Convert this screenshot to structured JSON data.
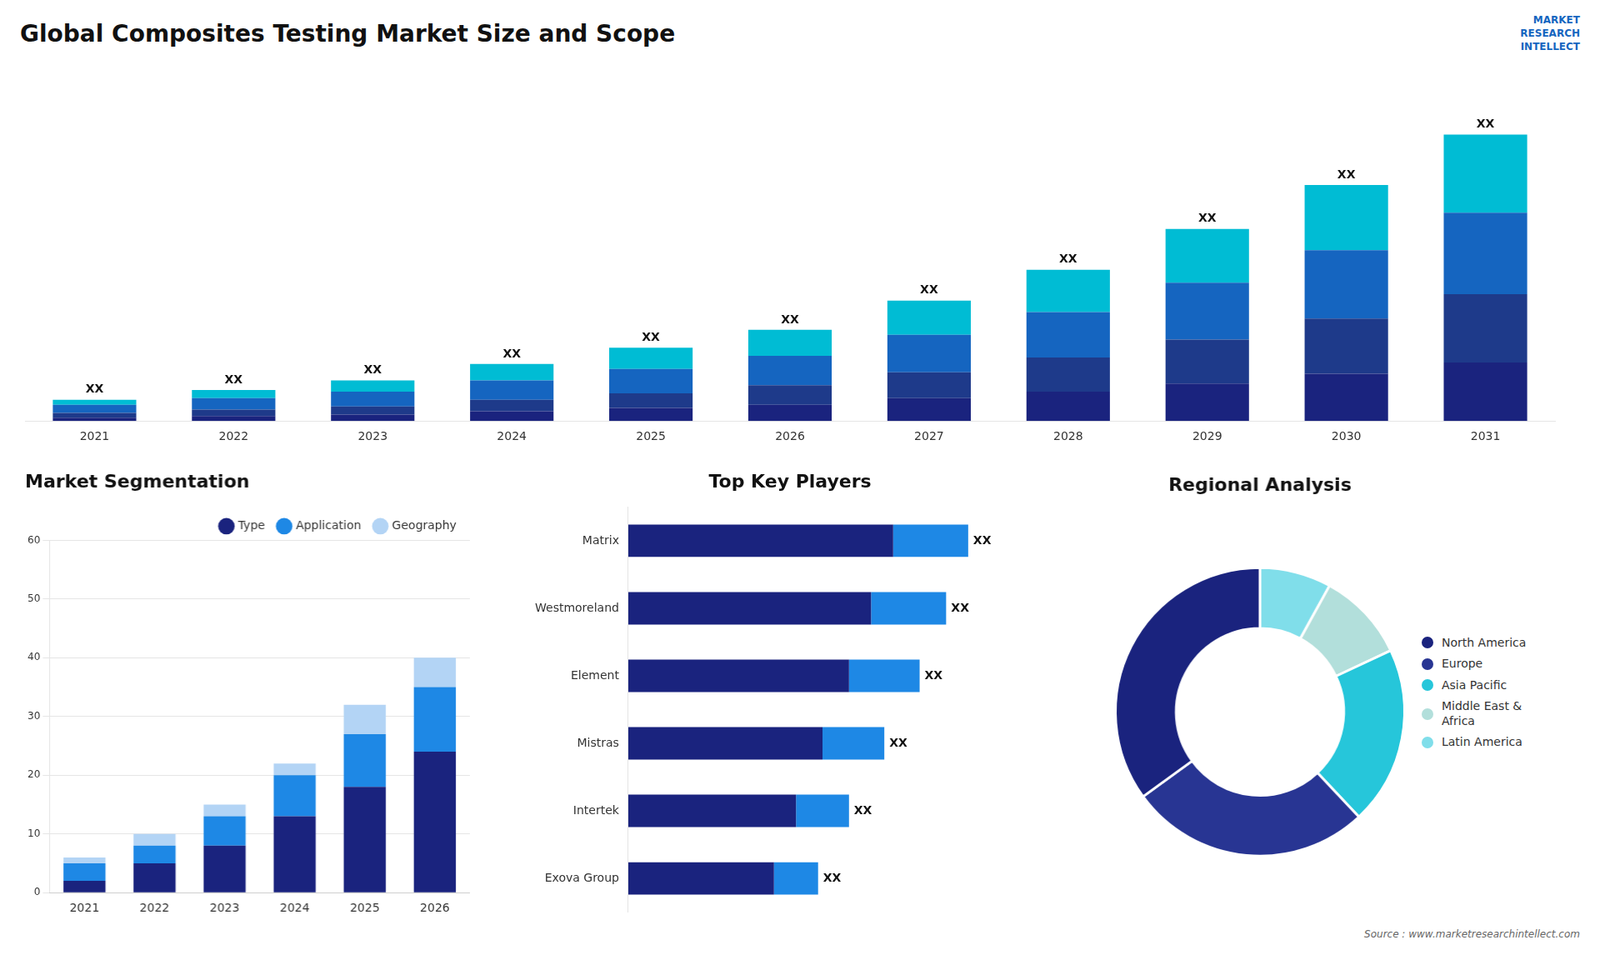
{
  "chart_data": [
    {
      "type": "bar",
      "title": "Global Composites Testing Market Size and Scope",
      "categories": [
        "2021",
        "2022",
        "2023",
        "2024",
        "2025",
        "2026",
        "2027",
        "2028",
        "2029",
        "2030",
        "2031"
      ],
      "series": [
        {
          "color": "#1a237e",
          "values": [
            2,
            3,
            4,
            6,
            8,
            10,
            14,
            18,
            23,
            29,
            36
          ]
        },
        {
          "color": "#1e3a8a",
          "values": [
            3,
            4,
            5,
            7,
            9,
            12,
            16,
            21,
            27,
            34,
            42
          ]
        },
        {
          "color": "#1565c0",
          "values": [
            5,
            7,
            9,
            12,
            15,
            18,
            23,
            28,
            35,
            42,
            50
          ]
        },
        {
          "color": "#00bcd4",
          "values": [
            3,
            5,
            7,
            10,
            13,
            16,
            21,
            26,
            33,
            40,
            48
          ]
        }
      ],
      "stacked": true,
      "ylim": [
        0,
        214.72
      ],
      "tick_labels": "x",
      "grid": false,
      "annotations": [
        {
          "text": "XX",
          "category": "2021"
        },
        {
          "text": "XX",
          "category": "2022"
        },
        {
          "text": "XX",
          "category": "2023"
        },
        {
          "text": "XX",
          "category": "2024"
        },
        {
          "text": "XX",
          "category": "2025"
        },
        {
          "text": "XX",
          "category": "2026"
        },
        {
          "text": "XX",
          "category": "2027"
        },
        {
          "text": "XX",
          "category": "2028"
        },
        {
          "text": "XX",
          "category": "2029"
        },
        {
          "text": "XX",
          "category": "2030"
        },
        {
          "text": "XX",
          "category": "2031"
        },
        {
          "text": "Source : www.marketresearchintellect.com"
        },
        {
          "text": "MARKET\nRESEARCH\nINTELLECT"
        }
      ]
    },
    {
      "type": "bar",
      "title": "Market Segmentation",
      "categories": [
        "2021",
        "2022",
        "2023",
        "2024",
        "2025",
        "2026"
      ],
      "series": [
        {
          "name": "Type",
          "color": "#1a237e",
          "values": [
            2,
            5,
            8,
            13,
            18,
            24
          ]
        },
        {
          "name": "Application",
          "color": "#1e88e5",
          "values": [
            3,
            3,
            5,
            7,
            9,
            11
          ]
        },
        {
          "name": "Geography",
          "color": "#b3d4f5",
          "values": [
            1,
            2,
            2,
            2,
            5,
            5
          ]
        }
      ],
      "stacked": true,
      "ylim": [
        0,
        60
      ],
      "yticks": [
        0,
        10,
        20,
        30,
        40,
        50,
        60
      ],
      "grid": true,
      "legend": "upper right"
    },
    {
      "type": "bar",
      "orientation": "horizontal",
      "title": "Top Key Players",
      "categories": [
        "Matrix",
        "Westmoreland",
        "Element",
        "Mistras",
        "Intertek",
        "Exova Group"
      ],
      "series": [
        {
          "color": "#1a237e",
          "values": [
            0.6,
            0.55,
            0.5,
            0.44,
            0.38,
            0.33
          ]
        },
        {
          "color": "#1e88e5",
          "values": [
            0.17,
            0.17,
            0.16,
            0.14,
            0.12,
            0.1
          ]
        }
      ],
      "stacked": true,
      "xlim": [
        0,
        0.95
      ],
      "tick_labels": "y",
      "grid": false,
      "annotations": [
        {
          "text": "XX",
          "category": "Matrix"
        },
        {
          "text": "XX",
          "category": "Westmoreland"
        },
        {
          "text": "XX",
          "category": "Element"
        },
        {
          "text": "XX",
          "category": "Mistras"
        },
        {
          "text": "XX",
          "category": "Intertek"
        },
        {
          "text": "XX",
          "category": "Exova Group"
        }
      ]
    },
    {
      "type": "donut",
      "title": "Regional Analysis",
      "categories": [
        "Latin America",
        "Middle East &\nAfrica",
        "Asia Pacific",
        "Europe",
        "North America"
      ],
      "values": [
        8,
        10,
        20,
        27,
        35
      ],
      "colors": [
        "#80deea",
        "#b2dfdb",
        "#26c6da",
        "#283593",
        "#1a237e"
      ],
      "legend": "right"
    }
  ]
}
